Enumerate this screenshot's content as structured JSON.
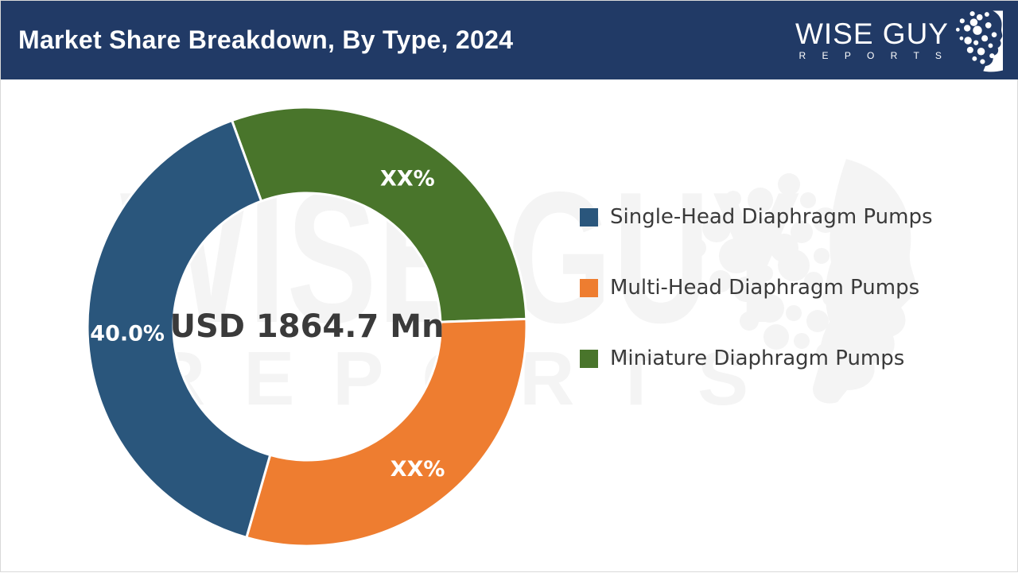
{
  "header": {
    "title": "Market Share Breakdown, By Type, 2024",
    "logo": {
      "brand": "WISE GUY",
      "sub": "R E P O R T S"
    }
  },
  "watermark": {
    "brand": "WISE GUY",
    "sub": "REPORTS"
  },
  "chart_data": {
    "type": "pie",
    "subtype": "donut",
    "title": "Market Share Breakdown, By Type, 2024",
    "center_label": "USD 1864.7 Mn",
    "start_angle_deg": -20,
    "legend_position": "right",
    "slices": [
      {
        "label": "Single-Head Diaphragm Pumps",
        "value_pct": 40.0,
        "display_pct": "40.0%",
        "color": "#2a567c"
      },
      {
        "label": "Multi-Head Diaphragm Pumps",
        "value_pct": 30.0,
        "display_pct": "XX%",
        "color": "#ee7d30"
      },
      {
        "label": "Miniature Diaphragm Pumps",
        "value_pct": 30.0,
        "display_pct": "XX%",
        "color": "#49752b"
      }
    ],
    "colors": {
      "header_bg": "#213a66",
      "label_text": "#ffffff",
      "center_text": "#3a3a3a",
      "legend_text": "#3a3a3a",
      "watermark": "#f4f4f4"
    }
  }
}
